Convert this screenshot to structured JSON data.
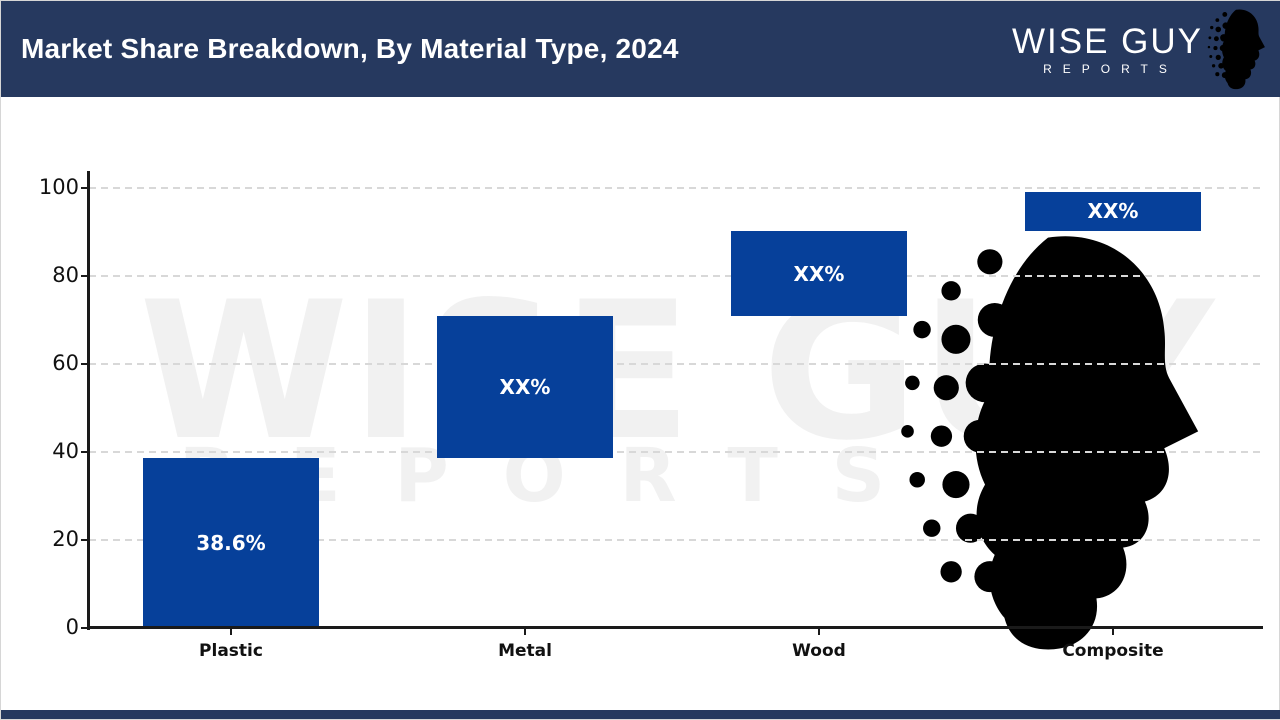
{
  "header": {
    "title": "Market Share Breakdown, By Material Type, 2024",
    "bg_color": "#26395f",
    "logo": {
      "wordmark": "WISE GUY",
      "subtext": "REPORTS"
    }
  },
  "watermark": {
    "line1": "WISE GUY",
    "line2": "REPORTS"
  },
  "chart_data": {
    "type": "bar",
    "subtype": "floating-waterfall",
    "title": "Market Share Breakdown, By Material Type, 2024",
    "categories": [
      "Plastic",
      "Metal",
      "Wood",
      "Composite"
    ],
    "series": [
      {
        "name": "Market Share (%)",
        "ranges": [
          [
            0,
            38.6
          ],
          [
            38.6,
            70.9
          ],
          [
            70.9,
            90.2
          ],
          [
            90.2,
            99.2
          ]
        ]
      }
    ],
    "bar_labels": [
      "38.6%",
      "XX%",
      "XX%",
      "XX%"
    ],
    "xlabel": "",
    "ylabel": "",
    "ylim": [
      0,
      100
    ],
    "yticks": [
      0,
      20,
      40,
      60,
      80,
      100
    ],
    "grid": "horizontal-dashed",
    "legend": "none",
    "bar_color": "#06409a"
  }
}
